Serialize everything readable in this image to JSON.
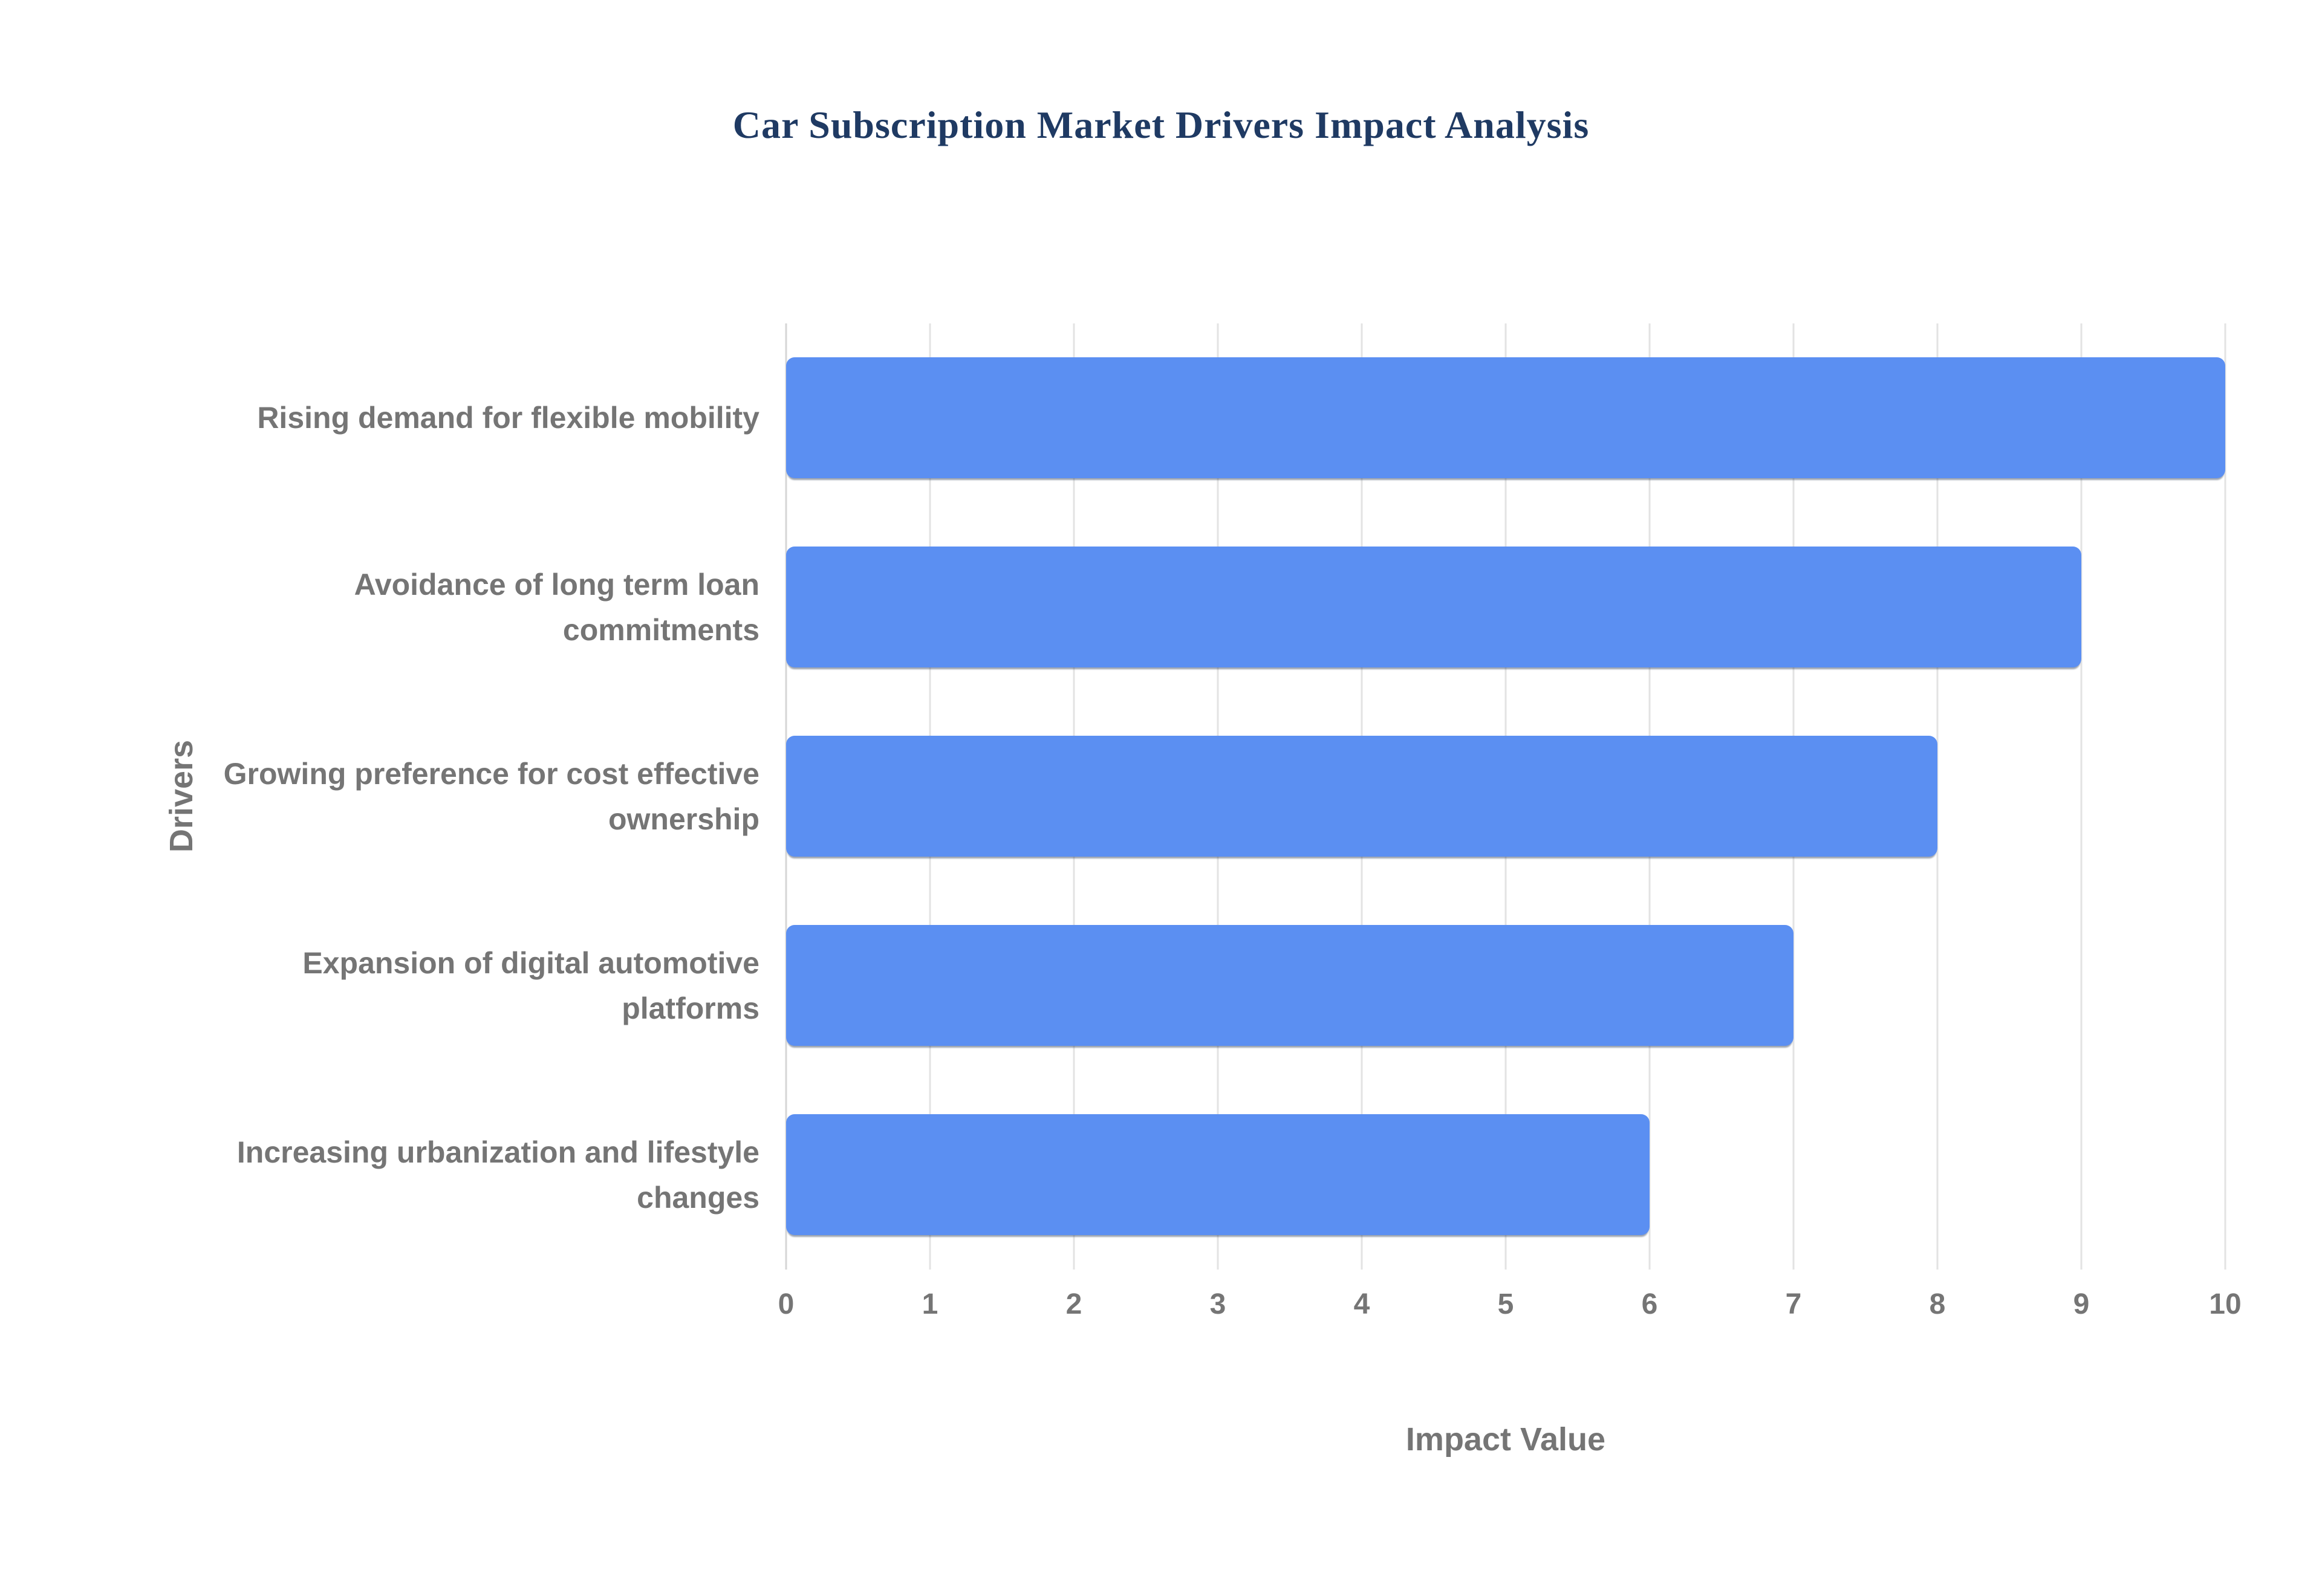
{
  "chart_data": {
    "type": "bar",
    "orientation": "horizontal",
    "title": "Car Subscription Market Drivers Impact Analysis",
    "xlabel": "Impact Value",
    "ylabel": "Drivers",
    "categories": [
      "Rising demand for flexible mobility",
      "Avoidance of long term loan commitments",
      "Growing preference for cost effective ownership",
      "Expansion of digital automotive platforms",
      "Increasing urbanization and lifestyle changes"
    ],
    "values": [
      10,
      9,
      8,
      7,
      6
    ],
    "xlim": [
      0,
      10
    ],
    "xticks": [
      0,
      1,
      2,
      3,
      4,
      5,
      6,
      7,
      8,
      9,
      10
    ],
    "grid": "vertical",
    "legend": "none",
    "bar_color": "#5b8ff2",
    "gridline_color": "#e3e3e3",
    "axis_text_color": "#757575",
    "title_color": "#1f3a63"
  }
}
